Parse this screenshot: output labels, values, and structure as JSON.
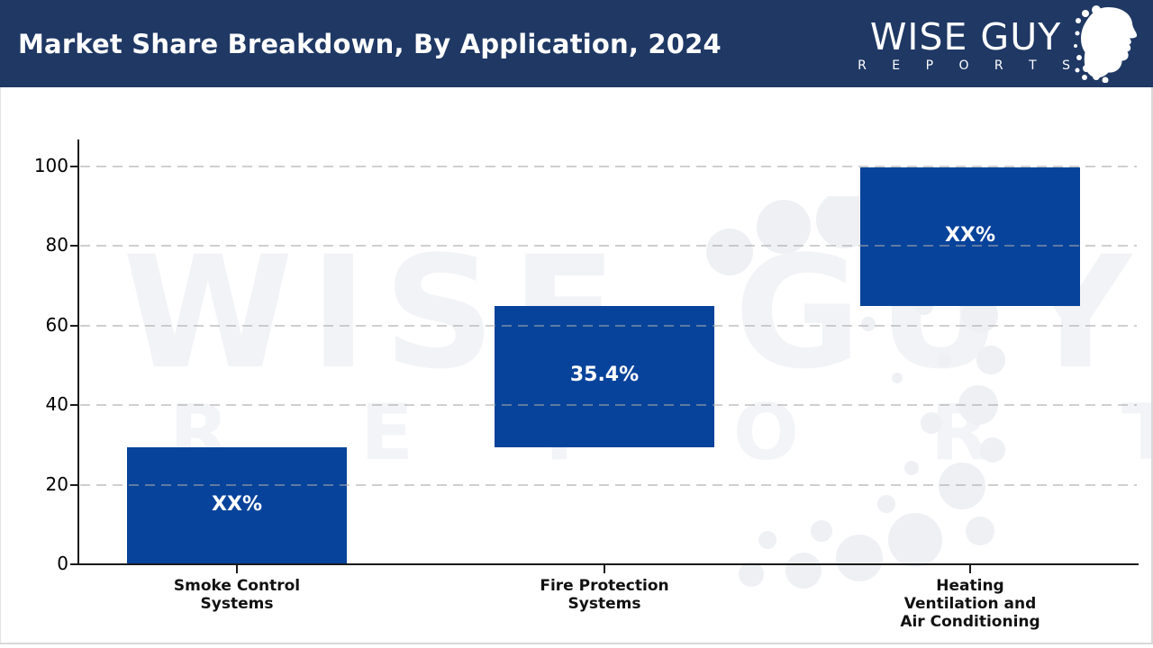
{
  "header": {
    "title": "Market Share Breakdown, By Application, 2024",
    "logo": {
      "line1": "WISE GUY",
      "line2": "R E P O R T S"
    }
  },
  "watermark": {
    "line1": "WISE GUY",
    "line2": "R E P O R T S"
  },
  "colors": {
    "header_bg": "#1f3864",
    "bar": "#07439b",
    "bar_label_text": "#ffffff",
    "axis": "#1a1a1a",
    "grid": "#c8c8c8",
    "watermark_text": "#f2f3f6"
  },
  "chart_data": {
    "type": "bar",
    "variant": "waterfall",
    "title": "Market Share Breakdown, By Application, 2024",
    "categories": [
      "Smoke Control Systems",
      "Fire Protection Systems",
      "Heating Ventilation and Air Conditioning"
    ],
    "category_lines": [
      [
        "Smoke Control",
        "Systems"
      ],
      [
        "Fire Protection",
        "Systems"
      ],
      [
        "Heating",
        "Ventilation and",
        "Air Conditioning"
      ]
    ],
    "segments": [
      {
        "start": 0,
        "end": 29.5,
        "label": "XX%"
      },
      {
        "start": 29.5,
        "end": 64.9,
        "label": "35.4%"
      },
      {
        "start": 64.9,
        "end": 99.8,
        "label": "XX%"
      }
    ],
    "xlabel": "",
    "ylabel": "",
    "ylim": [
      0,
      100
    ],
    "yticks": [
      0,
      20,
      40,
      60,
      80,
      100
    ],
    "grid": "dashed-horizontal",
    "legend": false
  }
}
